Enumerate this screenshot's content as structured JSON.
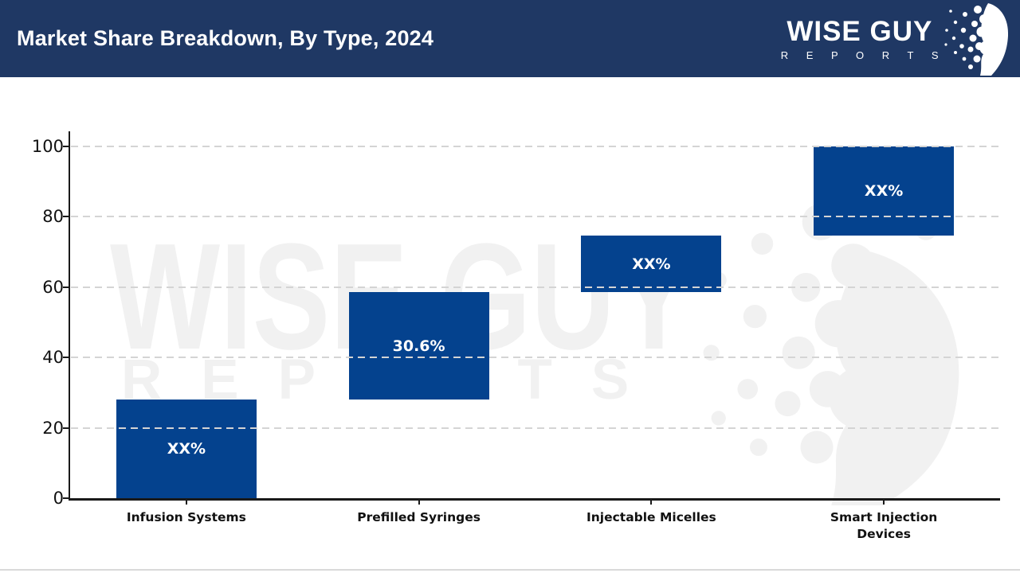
{
  "header": {
    "title": "Market Share Breakdown, By Type, 2024",
    "logo": {
      "line1": "WISE GUY",
      "line2": "R E P O R T S"
    }
  },
  "watermark": {
    "line1": "WISE GUY",
    "line2": "REPORTS"
  },
  "colors": {
    "header_bg": "#1f3864",
    "bar": "#04428e",
    "grid": "#d4d4d4",
    "axis": "#1a1a1a",
    "watermark": "#f1f1f1",
    "bar_label_text": "#ffffff",
    "title_text": "#ffffff"
  },
  "chart_data": {
    "type": "bar",
    "subtype": "waterfall",
    "title": "Market Share Breakdown, By Type, 2024",
    "xlabel": "",
    "ylabel": "",
    "categories": [
      "Infusion Systems",
      "Prefilled Syringes",
      "Injectable Micelles",
      "Smart Injection Devices"
    ],
    "series": [
      {
        "name": "Market Share (%)",
        "base": [
          0,
          28,
          58.6,
          74.6
        ],
        "values": [
          28,
          30.6,
          16,
          25.4
        ]
      }
    ],
    "bar_labels": [
      "XX%",
      "30.6%",
      "XX%",
      "XX%"
    ],
    "ylim": [
      0,
      100
    ],
    "yticks": [
      0,
      20,
      40,
      60,
      80,
      100
    ],
    "grid": "horizontal-dashed",
    "gridlines_above_bars": true,
    "legend": "none"
  }
}
